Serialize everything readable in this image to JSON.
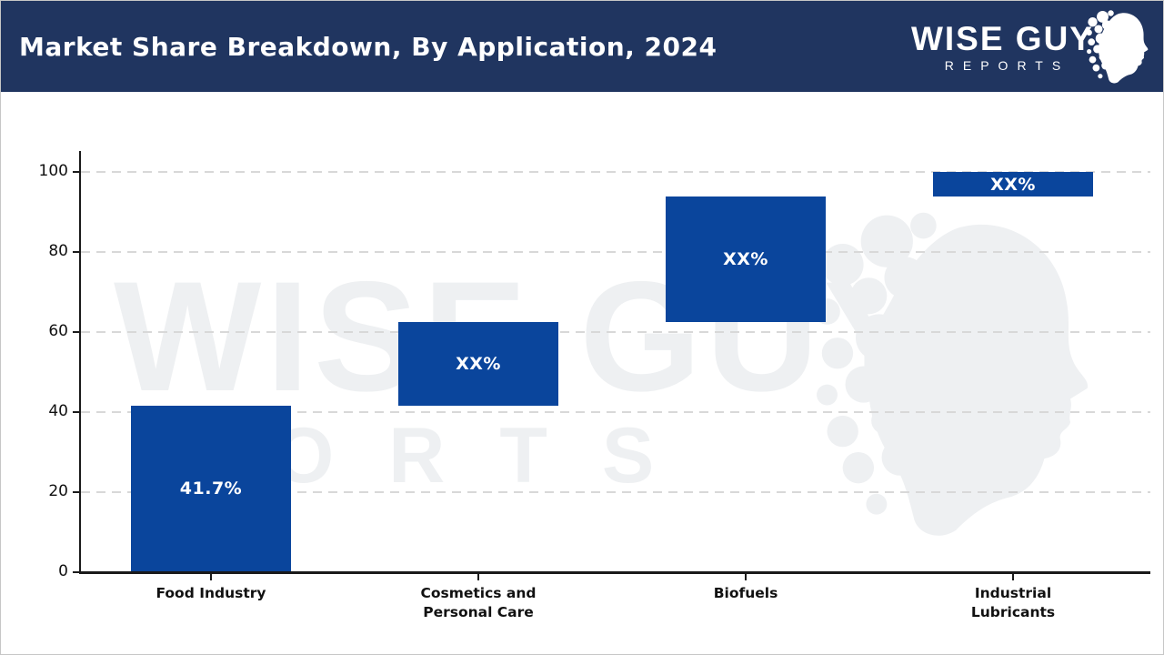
{
  "header": {
    "title": "Market Share Breakdown, By Application, 2024",
    "logo": {
      "line1": "WISE GUY",
      "line2": "REPORTS"
    }
  },
  "watermark": {
    "line1": "WISE GUY",
    "line2": "PORTS"
  },
  "chart_data": {
    "type": "bar",
    "subtype": "waterfall",
    "title": "Market Share Breakdown, By Application, 2024",
    "categories": [
      "Food Industry",
      "Cosmetics and\nPersonal Care",
      "Biofuels",
      "Industrial\nLubricants"
    ],
    "segments": [
      {
        "category": "Food Industry",
        "start": 0,
        "end": 41.7,
        "value": 41.7,
        "label": "41.7%"
      },
      {
        "category": "Cosmetics and Personal Care",
        "start": 41.7,
        "end": 62.5,
        "value": 20.8,
        "label": "XX%"
      },
      {
        "category": "Biofuels",
        "start": 62.5,
        "end": 93.8,
        "value": 31.3,
        "label": "XX%"
      },
      {
        "category": "Industrial Lubricants",
        "start": 93.8,
        "end": 100,
        "value": 6.2,
        "label": "XX%"
      }
    ],
    "xlabel": "",
    "ylabel": "",
    "ylim": [
      0,
      100
    ],
    "yticks": [
      0,
      20,
      40,
      60,
      80,
      100
    ],
    "grid": "horizontal-dashed",
    "legend": "none",
    "bar_color": "#0a459c",
    "value_label_color": "#ffffff"
  },
  "colors": {
    "header_bg": "#203560",
    "bar": "#0a459c",
    "grid": "#d8d8d8",
    "axis": "#1a1a1a",
    "watermark": "#eef0f2",
    "page_border": "#c6c6c6"
  }
}
